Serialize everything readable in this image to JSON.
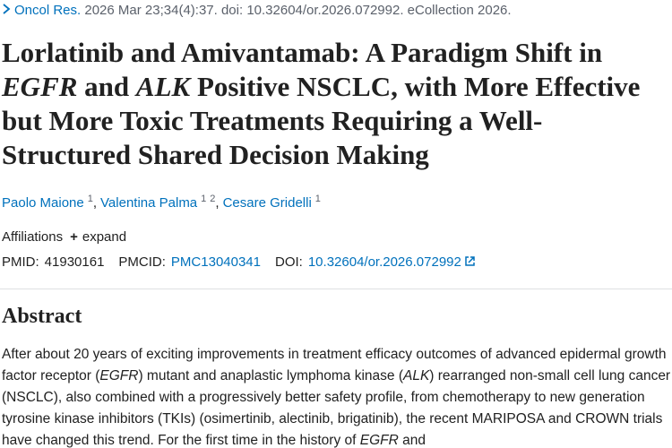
{
  "citation": {
    "journal": "Oncol Res.",
    "details": " 2026 Mar 23;34(4):37. doi: 10.32604/or.2026.072992. eCollection 2026."
  },
  "title": [
    {
      "text": "Lorlatinib and Amivantamab: A Paradigm Shift in ",
      "italic": false
    },
    {
      "text": "EGFR",
      "italic": true
    },
    {
      "text": " and ",
      "italic": false
    },
    {
      "text": "ALK",
      "italic": true
    },
    {
      "text": " Positive NSCLC, with More Effective but More Toxic Treatments Requiring a Well-Structured Shared Decision Making",
      "italic": false
    }
  ],
  "authors": {
    "separator": ",",
    "list": [
      {
        "name": "Paolo Maione",
        "affiliations": [
          "1"
        ]
      },
      {
        "name": "Valentina Palma",
        "affiliations": [
          "1",
          "2"
        ]
      },
      {
        "name": "Cesare Gridelli",
        "affiliations": [
          "1"
        ]
      }
    ]
  },
  "affiliations": {
    "label": "Affiliations",
    "toggle": "expand"
  },
  "identifiers": [
    {
      "label": "PMID:",
      "value": "41930161",
      "link": false
    },
    {
      "label": "PMCID:",
      "value": "PMC13040341",
      "link": true
    },
    {
      "label": "DOI:",
      "value": "10.32604/or.2026.072992",
      "link": true
    }
  ],
  "abstract": {
    "heading": "Abstract",
    "text": [
      {
        "text": "After about 20 years of exciting improvements in treatment efficacy outcomes of advanced epidermal growth factor receptor (",
        "italic": false
      },
      {
        "text": "EGFR",
        "italic": true
      },
      {
        "text": ") mutant and anaplastic lymphoma kinase (",
        "italic": false
      },
      {
        "text": "ALK",
        "italic": true
      },
      {
        "text": ") rearranged non-small cell lung cancer (NSCLC), also combined with a progressively better safety profile, from chemotherapy to new generation tyrosine kinase inhibitors (TKIs) (osimertinib, alectinib, brigatinib), the recent MARIPOSA and CROWN trials have changed this trend. For the first time in the history of ",
        "italic": false
      },
      {
        "text": "EGFR",
        "italic": true
      },
      {
        "text": " and",
        "italic": false
      }
    ]
  }
}
